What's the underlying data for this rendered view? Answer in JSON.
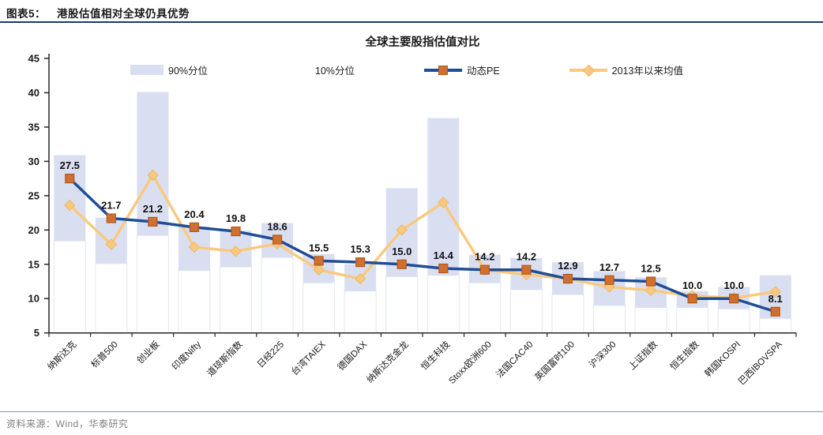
{
  "header": {
    "label": "图表5：",
    "title": "港股估值相对全球仍具优势"
  },
  "footer": {
    "source": "资料来源：Wind，华泰研究"
  },
  "chart_data": {
    "type": "bar",
    "subtype": "floating-range-bars-with-lines",
    "title": "全球主要股指估值对比",
    "categories": [
      "纳斯达克",
      "标普500",
      "创业板",
      "印度Nifty",
      "道琼斯指数",
      "日经225",
      "台湾TAIEX",
      "德国DAX",
      "纳斯达克金龙",
      "恒生科技",
      "Stoxx欧洲600",
      "法国CAC40",
      "英国富时100",
      "沪深300",
      "上证指数",
      "恒生指数",
      "韩国KOSPI",
      "巴西IBOVSPA"
    ],
    "series": [
      {
        "name": "90%分位",
        "type": "bar-90",
        "swatch": "bar",
        "values": [
          30.9,
          21.8,
          40.1,
          20.5,
          19.9,
          21.0,
          16.5,
          15.0,
          26.1,
          36.3,
          16.4,
          15.9,
          15.3,
          14.0,
          13.1,
          11.1,
          11.7,
          13.4
        ]
      },
      {
        "name": "10%分位",
        "type": "bar-10",
        "swatch": "blank",
        "values": [
          18.4,
          15.1,
          19.2,
          14.1,
          14.6,
          16.0,
          12.3,
          11.1,
          13.2,
          13.4,
          12.3,
          11.3,
          10.6,
          9.0,
          8.7,
          8.7,
          8.5,
          7.1
        ]
      },
      {
        "name": "动态PE",
        "type": "line-pe",
        "swatch": "line-square",
        "data_labels": true,
        "values": [
          27.5,
          21.7,
          21.2,
          20.4,
          19.8,
          18.6,
          15.5,
          15.3,
          15.0,
          14.4,
          14.2,
          14.2,
          12.9,
          12.7,
          12.5,
          10.0,
          10.0,
          8.1
        ]
      },
      {
        "name": "2013年以来均值",
        "type": "line-mean",
        "swatch": "line-diamond",
        "values": [
          23.6,
          17.9,
          28.0,
          17.5,
          16.9,
          18.0,
          14.2,
          12.9,
          20.0,
          24.0,
          14.2,
          13.5,
          12.9,
          11.7,
          11.2,
          10.4,
          10.1,
          11.0
        ]
      }
    ],
    "ylim": [
      5,
      45
    ],
    "ytick_step": 5,
    "yticks": [
      5,
      10,
      15,
      20,
      25,
      30,
      35,
      40,
      45
    ],
    "grid": false,
    "legend_position": "top",
    "colors": {
      "bar": "#d9dff1",
      "bar10_border": "#e4e7f0",
      "pe_line": "#1f4e96",
      "pe_marker": "#d06f2e",
      "pe_marker_border": "#b05a1e",
      "mean_line": "#f9c97f",
      "mean_marker_border": "#eeb760",
      "axis": "#262626",
      "header_rule": "#1f3864",
      "footer_rule": "#8496b0",
      "footer_text": "#7f7f7f"
    }
  }
}
